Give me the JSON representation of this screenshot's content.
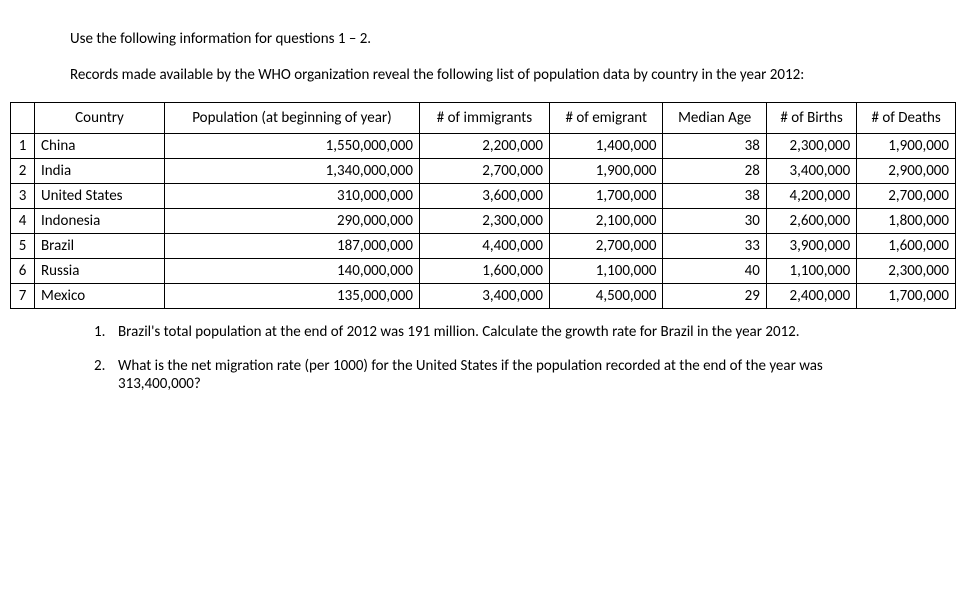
{
  "intro": {
    "line1": "Use the following information for questions 1 – 2.",
    "line2": "Records made available by the WHO organization reveal the following list of population data by country in the year 2012:"
  },
  "table": {
    "headers": {
      "blank": "",
      "country": "Country",
      "population": "Population (at beginning of year)",
      "immigrants": "# of immigrants",
      "emigrant": "# of emigrant",
      "median_age": "Median Age",
      "births": "# of Births",
      "deaths": "# of Deaths"
    },
    "rows": [
      {
        "n": "1",
        "country": "China",
        "population": "1,550,000,000",
        "immigrants": "2,200,000",
        "emigrant": "1,400,000",
        "median_age": "38",
        "births": "2,300,000",
        "deaths": "1,900,000"
      },
      {
        "n": "2",
        "country": "India",
        "population": "1,340,000,000",
        "immigrants": "2,700,000",
        "emigrant": "1,900,000",
        "median_age": "28",
        "births": "3,400,000",
        "deaths": "2,900,000"
      },
      {
        "n": "3",
        "country": "United States",
        "population": "310,000,000",
        "immigrants": "3,600,000",
        "emigrant": "1,700,000",
        "median_age": "38",
        "births": "4,200,000",
        "deaths": "2,700,000"
      },
      {
        "n": "4",
        "country": "Indonesia",
        "population": "290,000,000",
        "immigrants": "2,300,000",
        "emigrant": "2,100,000",
        "median_age": "30",
        "births": "2,600,000",
        "deaths": "1,800,000"
      },
      {
        "n": "5",
        "country": "Brazil",
        "population": "187,000,000",
        "immigrants": "4,400,000",
        "emigrant": "2,700,000",
        "median_age": "33",
        "births": "3,900,000",
        "deaths": "1,600,000"
      },
      {
        "n": "6",
        "country": "Russia",
        "population": "140,000,000",
        "immigrants": "1,600,000",
        "emigrant": "1,100,000",
        "median_age": "40",
        "births": "1,100,000",
        "deaths": "2,300,000"
      },
      {
        "n": "7",
        "country": "Mexico",
        "population": "135,000,000",
        "immigrants": "3,400,000",
        "emigrant": "4,500,000",
        "median_age": "29",
        "births": "2,400,000",
        "deaths": "1,700,000"
      }
    ]
  },
  "questions": {
    "q1": {
      "n": "1.",
      "text": "Brazil's total population at the end of 2012 was 191 million. Calculate the growth rate for Brazil in the year 2012."
    },
    "q2": {
      "n": "2.",
      "text": "What is the net migration rate (per 1000) for the United States if the population recorded at the end of the year was 313,400,000?"
    }
  },
  "style": {
    "font_family": "Calibri, Arial, sans-serif",
    "font_size_pt": 11,
    "text_color": "#000000",
    "background_color": "#ffffff",
    "border_color": "#000000",
    "col_widths": {
      "rownum": 24,
      "country": 130
    }
  }
}
